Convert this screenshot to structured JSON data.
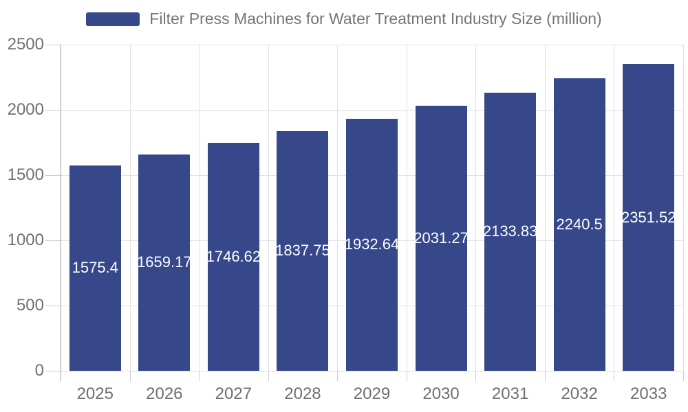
{
  "legend": {
    "label": "Filter Press Machines for Water Treatment Industry Size (million)",
    "swatch_color": "#36488A"
  },
  "chart_data": {
    "type": "bar",
    "title": "Filter Press Machines for Water Treatment Industry Size (million)",
    "categories": [
      "2025",
      "2026",
      "2027",
      "2028",
      "2029",
      "2030",
      "2031",
      "2032",
      "2033"
    ],
    "values": [
      1575.4,
      1659.17,
      1746.62,
      1837.75,
      1932.64,
      2031.27,
      2133.83,
      2240.5,
      2351.52
    ],
    "value_labels": [
      "1575.4",
      "1659.17",
      "1746.62",
      "1837.75",
      "1932.64",
      "2031.27",
      "2133.83",
      "2240.5",
      "2351.52"
    ],
    "xlabel": "",
    "ylabel": "",
    "ylim": [
      0,
      2500
    ],
    "yticks": [
      0,
      500,
      1000,
      1500,
      2000,
      2500
    ],
    "grid": true,
    "legend_position": "top",
    "colors": {
      "bar": "#36488A",
      "bar_label": "#ffffff",
      "axis_text": "#6f6f6f",
      "gridline": "#e0e0e0",
      "axis_line": "#999999",
      "tick": "#cccccc",
      "legend_text": "#757575"
    }
  }
}
